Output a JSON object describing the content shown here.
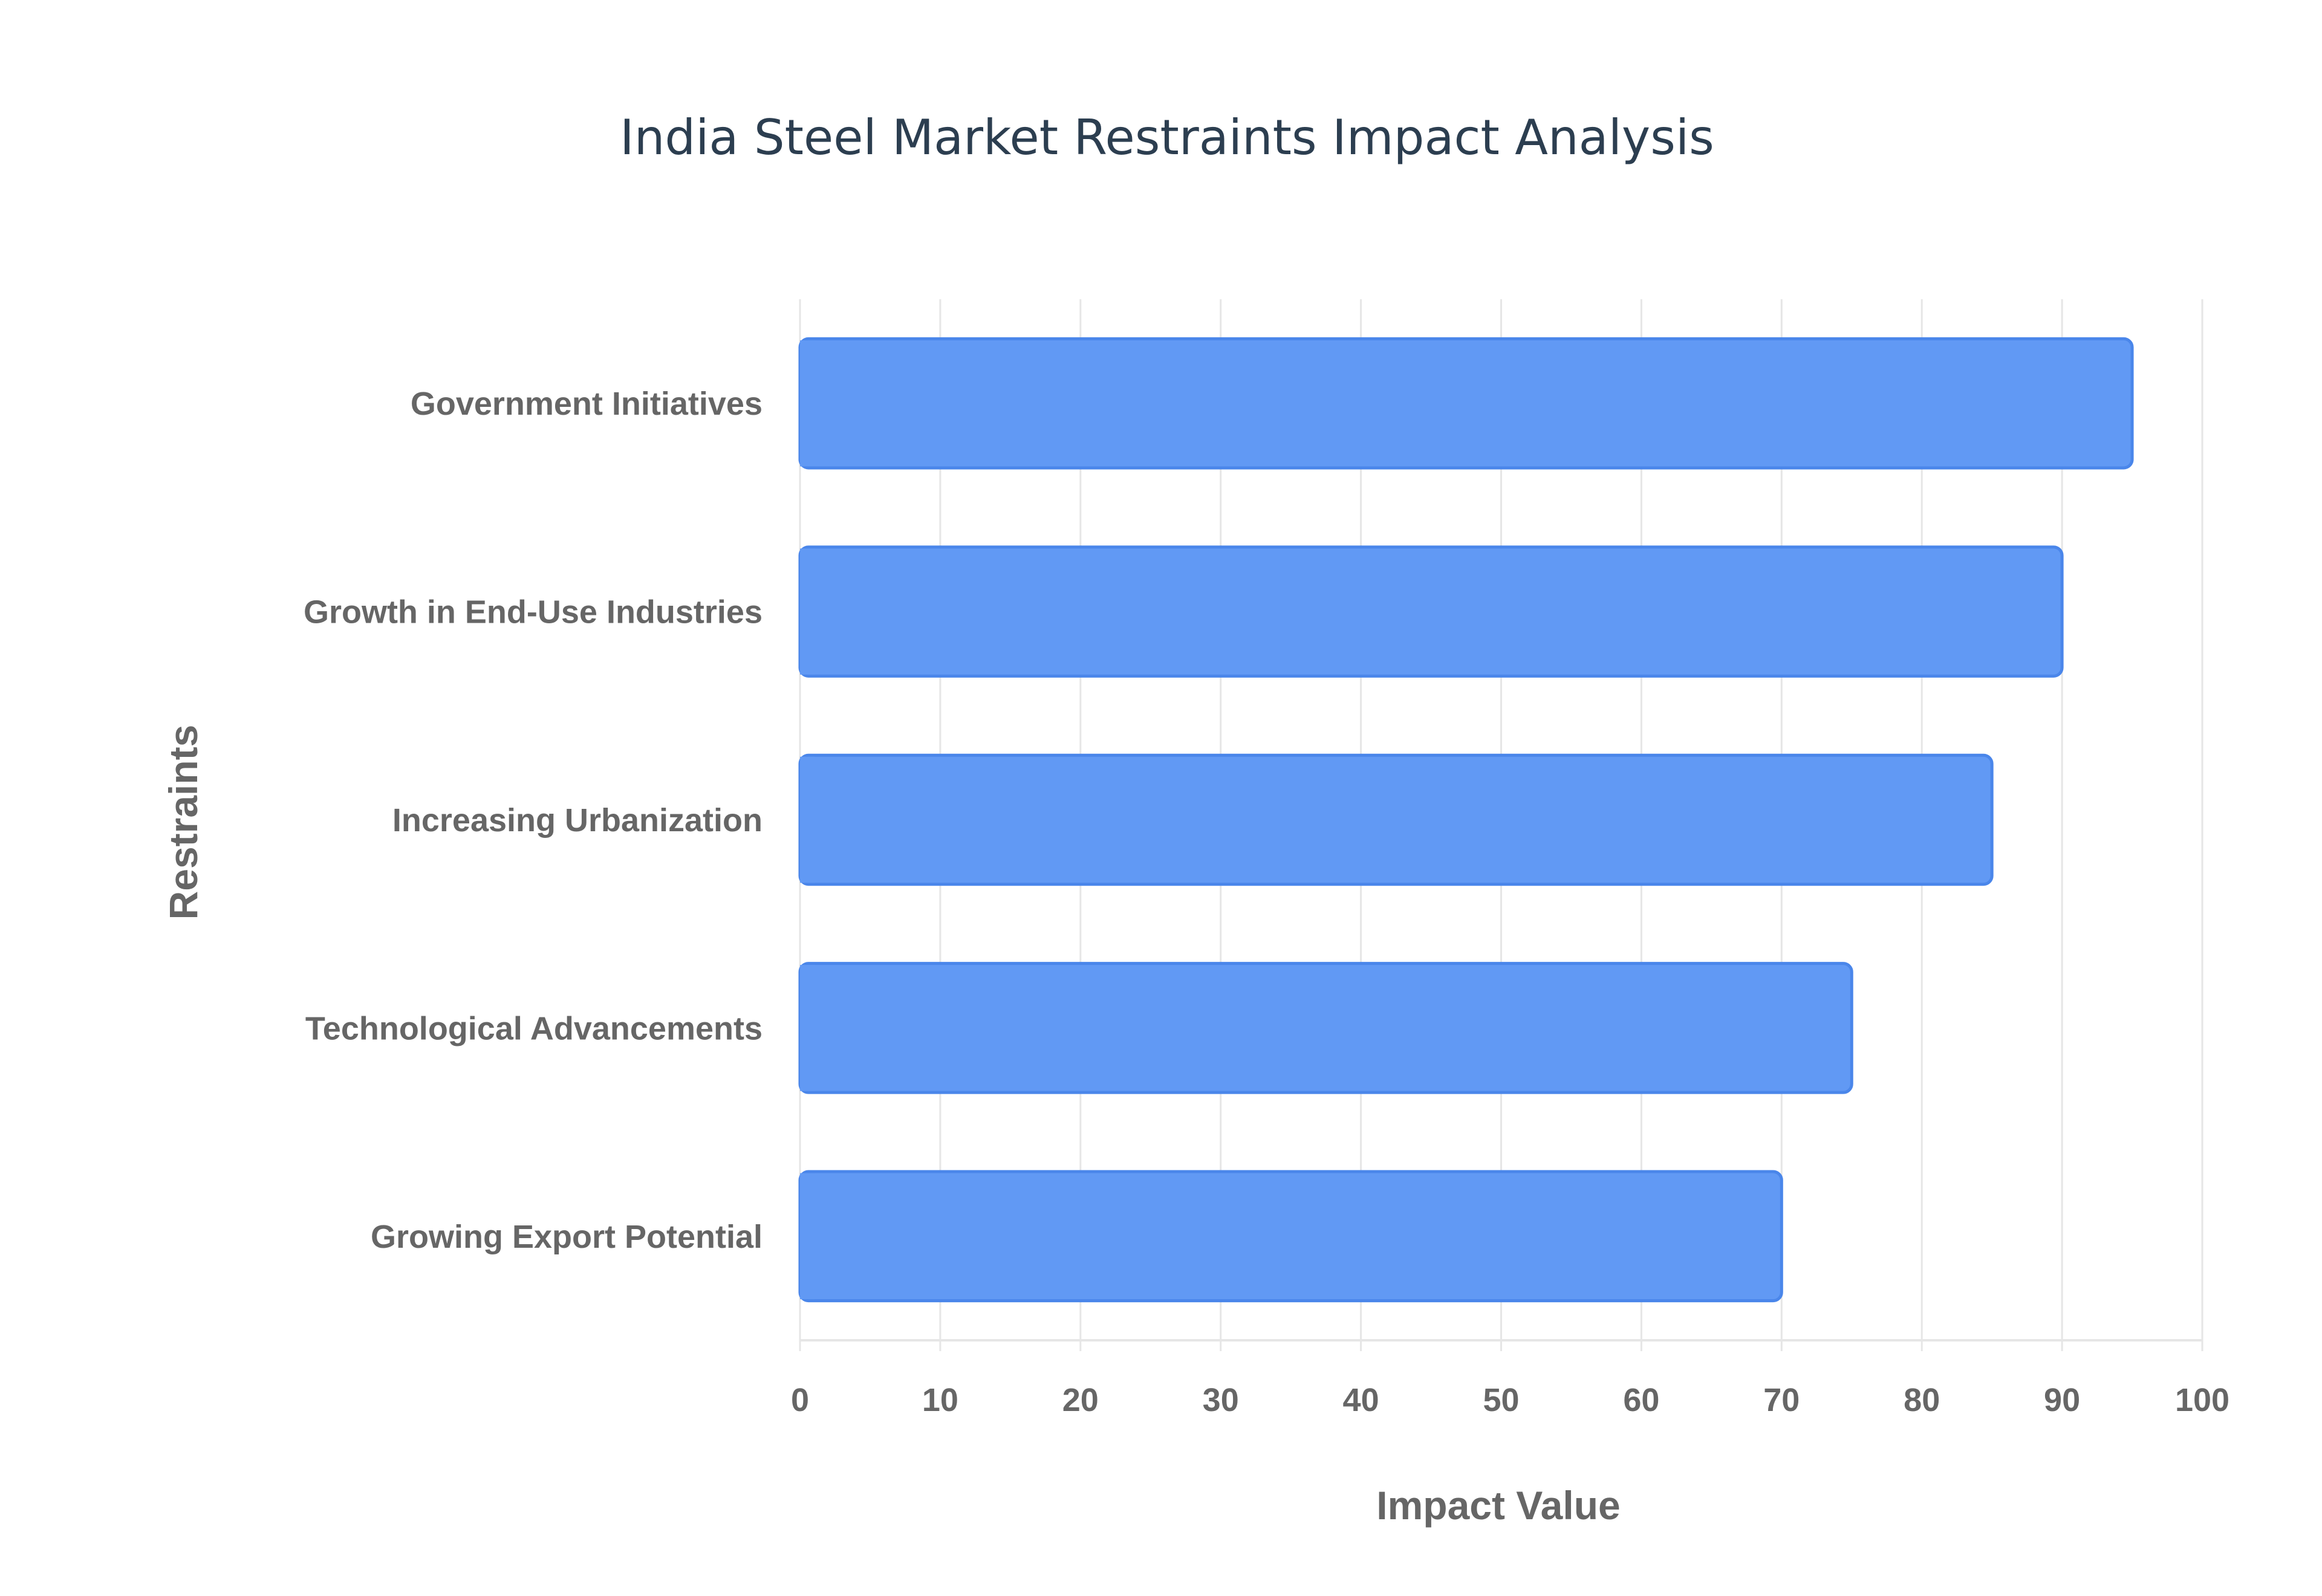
{
  "chart_data": {
    "type": "bar",
    "orientation": "horizontal",
    "title": "India Steel Market Restraints Impact Analysis",
    "xlabel": "Impact Value",
    "ylabel": "Restraints",
    "categories": [
      "Government Initiatives",
      "Growth in End-Use Industries",
      "Increasing Urbanization",
      "Technological Advancements",
      "Growing Export Potential"
    ],
    "values": [
      95,
      90,
      85,
      75,
      70
    ],
    "xlim": [
      0,
      100
    ],
    "xticks": [
      0,
      10,
      20,
      30,
      40,
      50,
      60,
      70,
      80,
      90,
      100
    ],
    "grid": true,
    "legend": "none",
    "colors": {
      "bar_fill": "#6199f4",
      "bar_stroke": "#4a86ea",
      "title": "#2c3e50",
      "labels": "#666666",
      "grid": "#e6e6e6"
    }
  }
}
